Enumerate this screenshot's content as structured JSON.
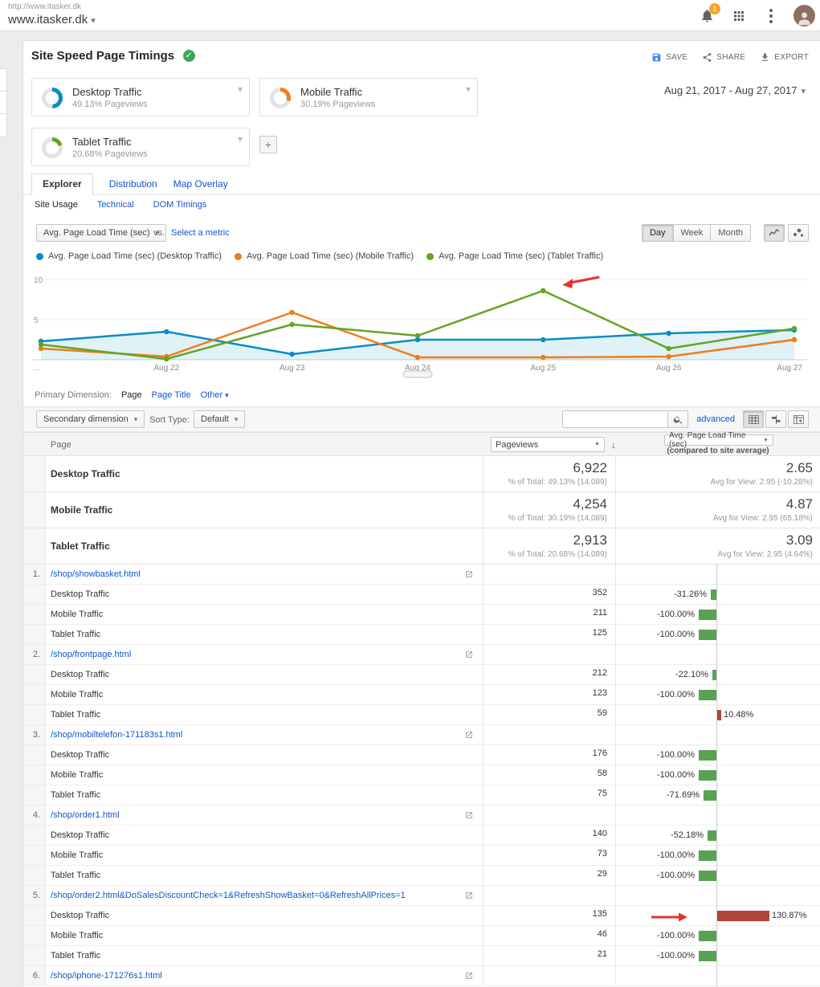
{
  "account": {
    "url": "http://www.itasker.dk",
    "property": "www.itasker.dk"
  },
  "topbar": {
    "notification_count": "1"
  },
  "icons": {
    "caret_down": "▾",
    "select_arrow": "▼",
    "sort_desc": "↓",
    "check": "✓",
    "plus": "+"
  },
  "report": {
    "title": "Site Speed Page Timings",
    "save_label": "SAVE",
    "share_label": "SHARE",
    "export_label": "EXPORT",
    "date_range": "Aug 21, 2017 - Aug 27, 2017"
  },
  "segments": [
    {
      "name": "Desktop Traffic",
      "detail": "49.13% Pageviews",
      "pct": 49.13,
      "color": "#058dc7"
    },
    {
      "name": "Mobile Traffic",
      "detail": "30.19% Pageviews",
      "pct": 30.19,
      "color": "#ef7d1a"
    },
    {
      "name": "Tablet Traffic",
      "detail": "20.68% Pageviews",
      "pct": 20.68,
      "color": "#61a621"
    }
  ],
  "tabs": [
    {
      "label": "Explorer",
      "active": true
    },
    {
      "label": "Distribution"
    },
    {
      "label": "Map Overlay"
    }
  ],
  "subtabs": [
    {
      "label": "Site Usage",
      "active": true
    },
    {
      "label": "Technical"
    },
    {
      "label": "DOM Timings"
    }
  ],
  "metric_bar": {
    "metric_dropdown": "Avg. Page Load Time (sec)",
    "vs_label": "vs.",
    "select_metric": "Select a metric",
    "granularity": [
      "Day",
      "Week",
      "Month"
    ],
    "active_granularity": "Day"
  },
  "chart_data": {
    "type": "line",
    "x": [
      "...",
      "Aug 22",
      "Aug 23",
      "Aug 24",
      "Aug 25",
      "Aug 26",
      "Aug 27"
    ],
    "ylim": [
      0,
      10
    ],
    "yticks": [
      5,
      10
    ],
    "legend_position": "top",
    "series": [
      {
        "name": "Avg. Page Load Time (sec) (Desktop Traffic)",
        "color": "#058dc7",
        "area": true,
        "values": [
          2.3,
          3.5,
          0.7,
          2.5,
          2.5,
          3.3,
          3.7
        ]
      },
      {
        "name": "Avg. Page Load Time (sec) (Mobile Traffic)",
        "color": "#ef7d1a",
        "area": false,
        "values": [
          1.4,
          0.4,
          5.9,
          0.3,
          0.3,
          0.4,
          2.5
        ]
      },
      {
        "name": "Avg. Page Load Time (sec) (Tablet Traffic)",
        "color": "#61a621",
        "area": false,
        "values": [
          1.9,
          0.1,
          4.4,
          3.0,
          8.6,
          1.4,
          3.9
        ]
      }
    ]
  },
  "dimension_bar": {
    "label": "Primary Dimension:",
    "primary": "Page",
    "alt1": "Page Title",
    "alt2": "Other"
  },
  "toolbar": {
    "secondary_dimension": "Secondary dimension",
    "sort_type_label": "Sort Type:",
    "sort_type_value": "Default",
    "search_value": "",
    "advanced_label": "advanced"
  },
  "table": {
    "columns": {
      "page": "Page",
      "pageviews": "Pageviews",
      "metric": "Avg. Page Load Time (sec)",
      "metric_note": "(compared to site average)"
    },
    "summary": [
      {
        "name": "Desktop Traffic",
        "pageviews": "6,922",
        "pct_of_total": "% of Total: 49.13% (14,089)",
        "value": "2.65",
        "avg_note": "Avg for View: 2.95 (-10.28%)"
      },
      {
        "name": "Mobile Traffic",
        "pageviews": "4,254",
        "pct_of_total": "% of Total: 30.19% (14,089)",
        "value": "4.87",
        "avg_note": "Avg for View: 2.95 (65.18%)"
      },
      {
        "name": "Tablet Traffic",
        "pageviews": "2,913",
        "pct_of_total": "% of Total: 20.68% (14,089)",
        "value": "3.09",
        "avg_note": "Avg for View: 2.95 (4.64%)"
      }
    ],
    "rows": [
      {
        "index": "1.",
        "page": "/shop/showbasket.html",
        "segments": [
          {
            "name": "Desktop Traffic",
            "pageviews": "352",
            "delta": -31.26
          },
          {
            "name": "Mobile Traffic",
            "pageviews": "211",
            "delta": -100
          },
          {
            "name": "Tablet Traffic",
            "pageviews": "125",
            "delta": -100
          }
        ]
      },
      {
        "index": "2.",
        "page": "/shop/frontpage.html",
        "segments": [
          {
            "name": "Desktop Traffic",
            "pageviews": "212",
            "delta": -22.1
          },
          {
            "name": "Mobile Traffic",
            "pageviews": "123",
            "delta": -100
          },
          {
            "name": "Tablet Traffic",
            "pageviews": "59",
            "delta": 10.48
          }
        ]
      },
      {
        "index": "3.",
        "page": "/shop/mobiltelefon-171183s1.html",
        "segments": [
          {
            "name": "Desktop Traffic",
            "pageviews": "176",
            "delta": -100
          },
          {
            "name": "Mobile Traffic",
            "pageviews": "58",
            "delta": -100
          },
          {
            "name": "Tablet Traffic",
            "pageviews": "75",
            "delta": -71.69
          }
        ]
      },
      {
        "index": "4.",
        "page": "/shop/order1.html",
        "segments": [
          {
            "name": "Desktop Traffic",
            "pageviews": "140",
            "delta": -52.18
          },
          {
            "name": "Mobile Traffic",
            "pageviews": "73",
            "delta": -100
          },
          {
            "name": "Tablet Traffic",
            "pageviews": "29",
            "delta": -100
          }
        ]
      },
      {
        "index": "5.",
        "page": "/shop/order2.html&DoSalesDiscountCheck=1&RefreshShowBasket=0&RefreshAllPrices=1",
        "segments": [
          {
            "name": "Desktop Traffic",
            "pageviews": "135",
            "delta": 130.87,
            "annotated": true
          },
          {
            "name": "Mobile Traffic",
            "pageviews": "46",
            "delta": -100
          },
          {
            "name": "Tablet Traffic",
            "pageviews": "21",
            "delta": -100
          }
        ]
      },
      {
        "index": "6.",
        "page": "/shop/iphone-171276s1.html",
        "segments": []
      }
    ]
  }
}
